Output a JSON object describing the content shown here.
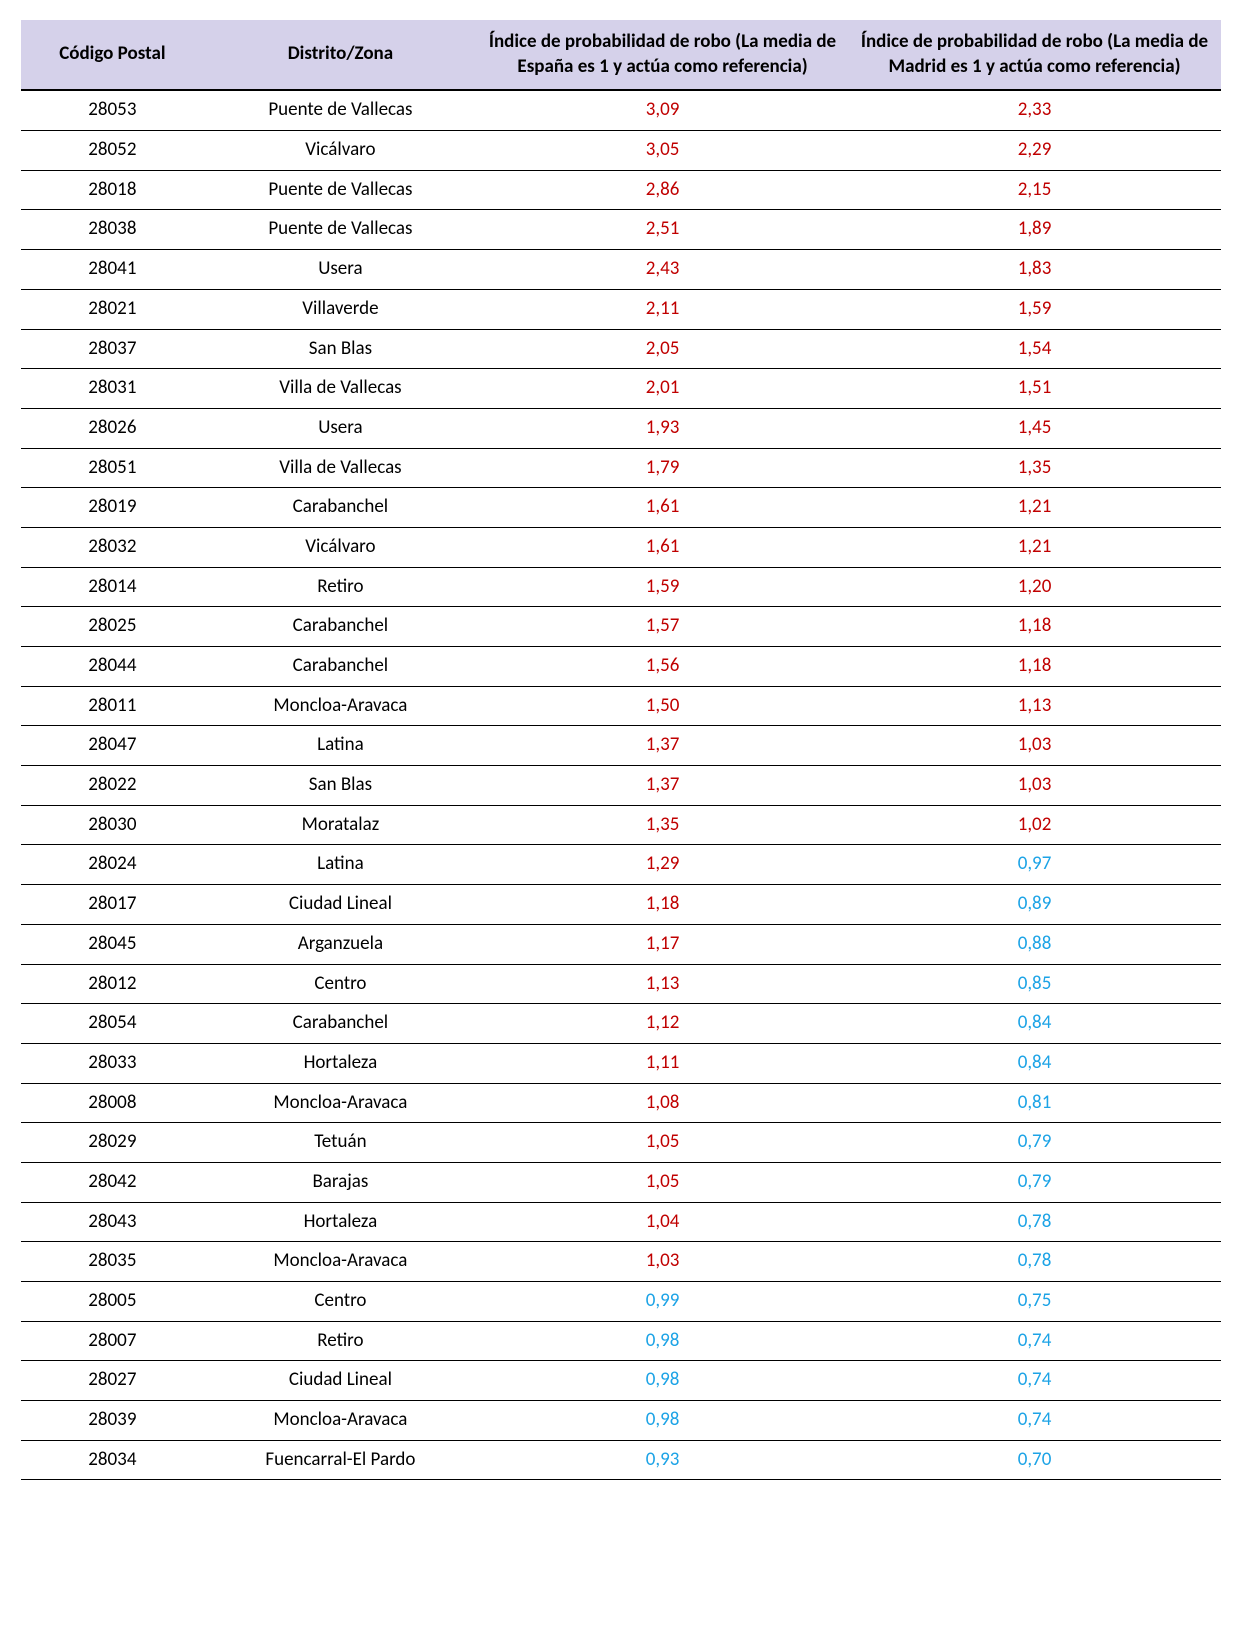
{
  "table": {
    "headers": {
      "codigo": "Código Postal",
      "zona": "Distrito/Zona",
      "indice_espana": "Índice de probabilidad de robo\n(La media de España es 1\ny actúa como referencia)",
      "indice_madrid": "Índice de probabilidad de robo\n(La media de Madrid es 1\ny actúa como referencia)"
    },
    "colors": {
      "header_bg": "#d5d1ea",
      "high": "#c00000",
      "low": "#1ca3e6",
      "border": "#000000",
      "text": "#000000"
    },
    "threshold": 1.0,
    "rows": [
      {
        "codigo": "28053",
        "zona": "Puente de Vallecas",
        "esp": "3,09",
        "mad": "2,33",
        "esp_n": 3.09,
        "mad_n": 2.33
      },
      {
        "codigo": "28052",
        "zona": "Vicálvaro",
        "esp": "3,05",
        "mad": "2,29",
        "esp_n": 3.05,
        "mad_n": 2.29
      },
      {
        "codigo": "28018",
        "zona": "Puente de Vallecas",
        "esp": "2,86",
        "mad": "2,15",
        "esp_n": 2.86,
        "mad_n": 2.15
      },
      {
        "codigo": "28038",
        "zona": "Puente de Vallecas",
        "esp": "2,51",
        "mad": "1,89",
        "esp_n": 2.51,
        "mad_n": 1.89
      },
      {
        "codigo": "28041",
        "zona": "Usera",
        "esp": "2,43",
        "mad": "1,83",
        "esp_n": 2.43,
        "mad_n": 1.83
      },
      {
        "codigo": "28021",
        "zona": "Villaverde",
        "esp": "2,11",
        "mad": "1,59",
        "esp_n": 2.11,
        "mad_n": 1.59
      },
      {
        "codigo": "28037",
        "zona": "San Blas",
        "esp": "2,05",
        "mad": "1,54",
        "esp_n": 2.05,
        "mad_n": 1.54
      },
      {
        "codigo": "28031",
        "zona": "Villa de Vallecas",
        "esp": "2,01",
        "mad": "1,51",
        "esp_n": 2.01,
        "mad_n": 1.51
      },
      {
        "codigo": "28026",
        "zona": "Usera",
        "esp": "1,93",
        "mad": "1,45",
        "esp_n": 1.93,
        "mad_n": 1.45
      },
      {
        "codigo": "28051",
        "zona": "Villa de Vallecas",
        "esp": "1,79",
        "mad": "1,35",
        "esp_n": 1.79,
        "mad_n": 1.35
      },
      {
        "codigo": "28019",
        "zona": "Carabanchel",
        "esp": "1,61",
        "mad": "1,21",
        "esp_n": 1.61,
        "mad_n": 1.21
      },
      {
        "codigo": "28032",
        "zona": "Vicálvaro",
        "esp": "1,61",
        "mad": "1,21",
        "esp_n": 1.61,
        "mad_n": 1.21
      },
      {
        "codigo": "28014",
        "zona": "Retiro",
        "esp": "1,59",
        "mad": "1,20",
        "esp_n": 1.59,
        "mad_n": 1.2
      },
      {
        "codigo": "28025",
        "zona": "Carabanchel",
        "esp": "1,57",
        "mad": "1,18",
        "esp_n": 1.57,
        "mad_n": 1.18
      },
      {
        "codigo": "28044",
        "zona": "Carabanchel",
        "esp": "1,56",
        "mad": "1,18",
        "esp_n": 1.56,
        "mad_n": 1.18
      },
      {
        "codigo": "28011",
        "zona": "Moncloa-Aravaca",
        "esp": "1,50",
        "mad": "1,13",
        "esp_n": 1.5,
        "mad_n": 1.13
      },
      {
        "codigo": "28047",
        "zona": "Latina",
        "esp": "1,37",
        "mad": "1,03",
        "esp_n": 1.37,
        "mad_n": 1.03
      },
      {
        "codigo": "28022",
        "zona": "San Blas",
        "esp": "1,37",
        "mad": "1,03",
        "esp_n": 1.37,
        "mad_n": 1.03
      },
      {
        "codigo": "28030",
        "zona": "Moratalaz",
        "esp": "1,35",
        "mad": "1,02",
        "esp_n": 1.35,
        "mad_n": 1.02
      },
      {
        "codigo": "28024",
        "zona": "Latina",
        "esp": "1,29",
        "mad": "0,97",
        "esp_n": 1.29,
        "mad_n": 0.97
      },
      {
        "codigo": "28017",
        "zona": "Ciudad Lineal",
        "esp": "1,18",
        "mad": "0,89",
        "esp_n": 1.18,
        "mad_n": 0.89
      },
      {
        "codigo": "28045",
        "zona": "Arganzuela",
        "esp": "1,17",
        "mad": "0,88",
        "esp_n": 1.17,
        "mad_n": 0.88
      },
      {
        "codigo": "28012",
        "zona": "Centro",
        "esp": "1,13",
        "mad": "0,85",
        "esp_n": 1.13,
        "mad_n": 0.85
      },
      {
        "codigo": "28054",
        "zona": "Carabanchel",
        "esp": "1,12",
        "mad": "0,84",
        "esp_n": 1.12,
        "mad_n": 0.84
      },
      {
        "codigo": "28033",
        "zona": "Hortaleza",
        "esp": "1,11",
        "mad": "0,84",
        "esp_n": 1.11,
        "mad_n": 0.84
      },
      {
        "codigo": "28008",
        "zona": "Moncloa-Aravaca",
        "esp": "1,08",
        "mad": "0,81",
        "esp_n": 1.08,
        "mad_n": 0.81
      },
      {
        "codigo": "28029",
        "zona": "Tetuán",
        "esp": "1,05",
        "mad": "0,79",
        "esp_n": 1.05,
        "mad_n": 0.79
      },
      {
        "codigo": "28042",
        "zona": "Barajas",
        "esp": "1,05",
        "mad": "0,79",
        "esp_n": 1.05,
        "mad_n": 0.79
      },
      {
        "codigo": "28043",
        "zona": "Hortaleza",
        "esp": "1,04",
        "mad": "0,78",
        "esp_n": 1.04,
        "mad_n": 0.78
      },
      {
        "codigo": "28035",
        "zona": "Moncloa-Aravaca",
        "esp": "1,03",
        "mad": "0,78",
        "esp_n": 1.03,
        "mad_n": 0.78
      },
      {
        "codigo": "28005",
        "zona": "Centro",
        "esp": "0,99",
        "mad": "0,75",
        "esp_n": 0.99,
        "mad_n": 0.75
      },
      {
        "codigo": "28007",
        "zona": "Retiro",
        "esp": "0,98",
        "mad": "0,74",
        "esp_n": 0.98,
        "mad_n": 0.74
      },
      {
        "codigo": "28027",
        "zona": "Ciudad Lineal",
        "esp": "0,98",
        "mad": "0,74",
        "esp_n": 0.98,
        "mad_n": 0.74
      },
      {
        "codigo": "28039",
        "zona": "Moncloa-Aravaca",
        "esp": "0,98",
        "mad": "0,74",
        "esp_n": 0.98,
        "mad_n": 0.74
      },
      {
        "codigo": "28034",
        "zona": "Fuencarral-El Pardo",
        "esp": "0,93",
        "mad": "0,70",
        "esp_n": 0.93,
        "mad_n": 0.7
      }
    ]
  }
}
